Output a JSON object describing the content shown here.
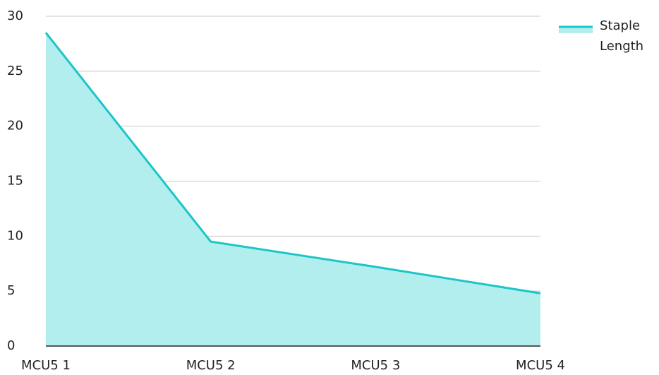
{
  "chart_data": {
    "type": "area",
    "categories": [
      "MCU5 1",
      "MCU5 2",
      "MCU5 3",
      "MCU5 4"
    ],
    "series": [
      {
        "name": "Staple Length",
        "color": "#1cc6c8",
        "fill": "#b3eeee",
        "values": [
          28.5,
          9.5,
          7.2,
          4.8
        ]
      }
    ],
    "ylim": [
      0,
      30
    ],
    "yticks": [
      0,
      5,
      10,
      15,
      20,
      25,
      30
    ],
    "grid": true,
    "legend": "top-right"
  }
}
